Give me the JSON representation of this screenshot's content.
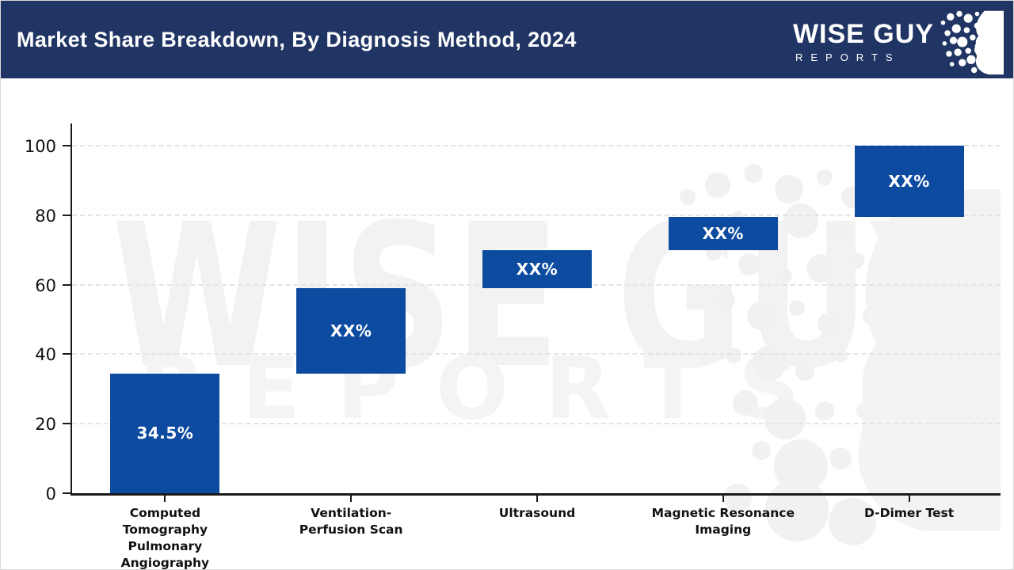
{
  "header": {
    "title": "Market Share Breakdown, By Diagnosis Method, 2024",
    "logo": {
      "name": "WISE GUY",
      "sub": "REPORTS"
    }
  },
  "watermark": {
    "line1": "WISE GUY",
    "line2": "REPORTS"
  },
  "chart_data": {
    "type": "bar",
    "variant": "waterfall",
    "title": "Market Share Breakdown, By Diagnosis Method, 2024",
    "categories": [
      "Computed Tomography Pulmonary Angiography",
      "Ventilation-Perfusion Scan",
      "Ultrasound",
      "Magnetic Resonance Imaging",
      "D-Dimer Test"
    ],
    "categories_display": [
      [
        "Computed",
        "Tomography",
        "Pulmonary",
        "Angiography"
      ],
      [
        "Ventilation-",
        "Perfusion Scan"
      ],
      [
        "Ultrasound"
      ],
      [
        "Magnetic Resonance",
        "Imaging"
      ],
      [
        "D-Dimer Test"
      ]
    ],
    "bars": [
      {
        "label": "34.5%",
        "start": 0,
        "end": 34.5
      },
      {
        "label": "XX%",
        "start": 34.5,
        "end": 59
      },
      {
        "label": "XX%",
        "start": 59,
        "end": 70
      },
      {
        "label": "XX%",
        "start": 70,
        "end": 79.5
      },
      {
        "label": "XX%",
        "start": 79.5,
        "end": 100
      }
    ],
    "xlabel": "",
    "ylabel": "",
    "ylim": [
      0,
      100
    ],
    "yticks": [
      0,
      20,
      40,
      60,
      80,
      100
    ],
    "grid": "horizontal-dashed",
    "legend": "none",
    "value_labels_inside_bars": true,
    "colors": {
      "bar": "#0d4ba0",
      "bar_label": "#ffffff",
      "header_bg": "#213564",
      "axis": "#1a1a1a",
      "grid": "#e4e4e4",
      "watermark": "#f2f2f2"
    }
  }
}
